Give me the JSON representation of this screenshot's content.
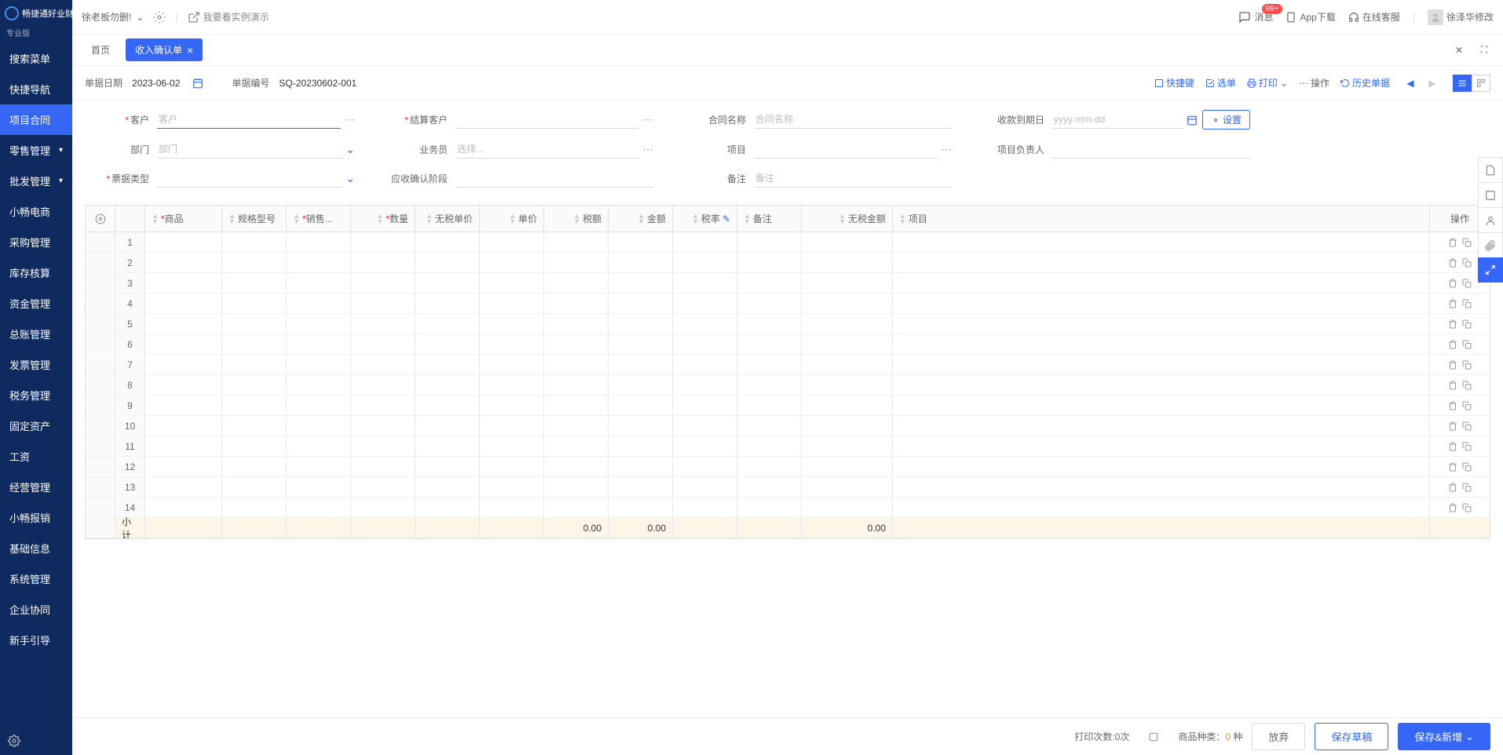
{
  "brand": {
    "name": "畅捷通好业财",
    "edition": "专业版"
  },
  "tenant": "徐老板勿删!",
  "topbar": {
    "demo": "我要看实例演示",
    "message": "消息",
    "message_badge": "99+",
    "app": "App下载",
    "service": "在线客服",
    "user": "徐泽华修改"
  },
  "sidebar": [
    {
      "label": "搜索菜单",
      "arrow": false
    },
    {
      "label": "快捷导航",
      "arrow": false
    },
    {
      "label": "项目合同",
      "arrow": false,
      "active": true
    },
    {
      "label": "零售管理",
      "arrow": true
    },
    {
      "label": "批发管理",
      "arrow": true
    },
    {
      "label": "小畅电商",
      "arrow": false
    },
    {
      "label": "采购管理",
      "arrow": false
    },
    {
      "label": "库存核算",
      "arrow": false
    },
    {
      "label": "资金管理",
      "arrow": false
    },
    {
      "label": "总账管理",
      "arrow": false
    },
    {
      "label": "发票管理",
      "arrow": false
    },
    {
      "label": "税务管理",
      "arrow": false
    },
    {
      "label": "固定资产",
      "arrow": false
    },
    {
      "label": "工资",
      "arrow": false
    },
    {
      "label": "经营管理",
      "arrow": false
    },
    {
      "label": "小畅报销",
      "arrow": false
    },
    {
      "label": "基础信息",
      "arrow": false
    },
    {
      "label": "系统管理",
      "arrow": false
    },
    {
      "label": "企业协同",
      "arrow": false
    },
    {
      "label": "新手引导",
      "arrow": false
    }
  ],
  "tabs": {
    "home": "首页",
    "active": "收入确认单"
  },
  "toolbar": {
    "date_label": "单据日期",
    "date": "2023-06-02",
    "code_label": "单据编号",
    "code": "SQ-20230602-001",
    "shortcut": "快捷键",
    "select": "选单",
    "print": "打印",
    "ops": "操作",
    "history": "历史单据"
  },
  "form": {
    "customer_label": "客户",
    "customer_ph": "客户",
    "settle_label": "结算客户",
    "contract_label": "合同名称",
    "contract_ph": "合同名称",
    "due_label": "收款到期日",
    "due_ph": "yyyy-mm-dd",
    "settings_btn": "设置",
    "dept_label": "部门",
    "dept_ph": "部门",
    "salesman_label": "业务员",
    "salesman_ph": "选择...",
    "project_label": "项目",
    "owner_label": "项目负责人",
    "invoice_label": "票据类型",
    "phase_label": "应收确认阶段",
    "remark_label": "备注",
    "remark_ph": "备注"
  },
  "table": {
    "columns": {
      "product": "商品",
      "spec": "规格型号",
      "sale": "销售...",
      "qty": "数量",
      "price_nt": "无税单价",
      "price": "单价",
      "tax": "税额",
      "amount": "金额",
      "taxrate": "税率",
      "remark": "备注",
      "amount_nt": "无税金额",
      "project": "项目",
      "ops": "操作"
    },
    "rows": 14,
    "subtotal_label": "小计",
    "subtotal": {
      "tax": "0.00",
      "amount": "0.00",
      "amount_nt": "0.00"
    }
  },
  "footer": {
    "print_count": "打印次数:0次",
    "sku_label": "商品种类：",
    "sku_count": "0",
    "sku_unit": " 种",
    "discard": "放弃",
    "draft": "保存草稿",
    "save_new": "保存&新增"
  },
  "rail": [
    "草",
    "库",
    "人",
    "链",
    "展"
  ]
}
